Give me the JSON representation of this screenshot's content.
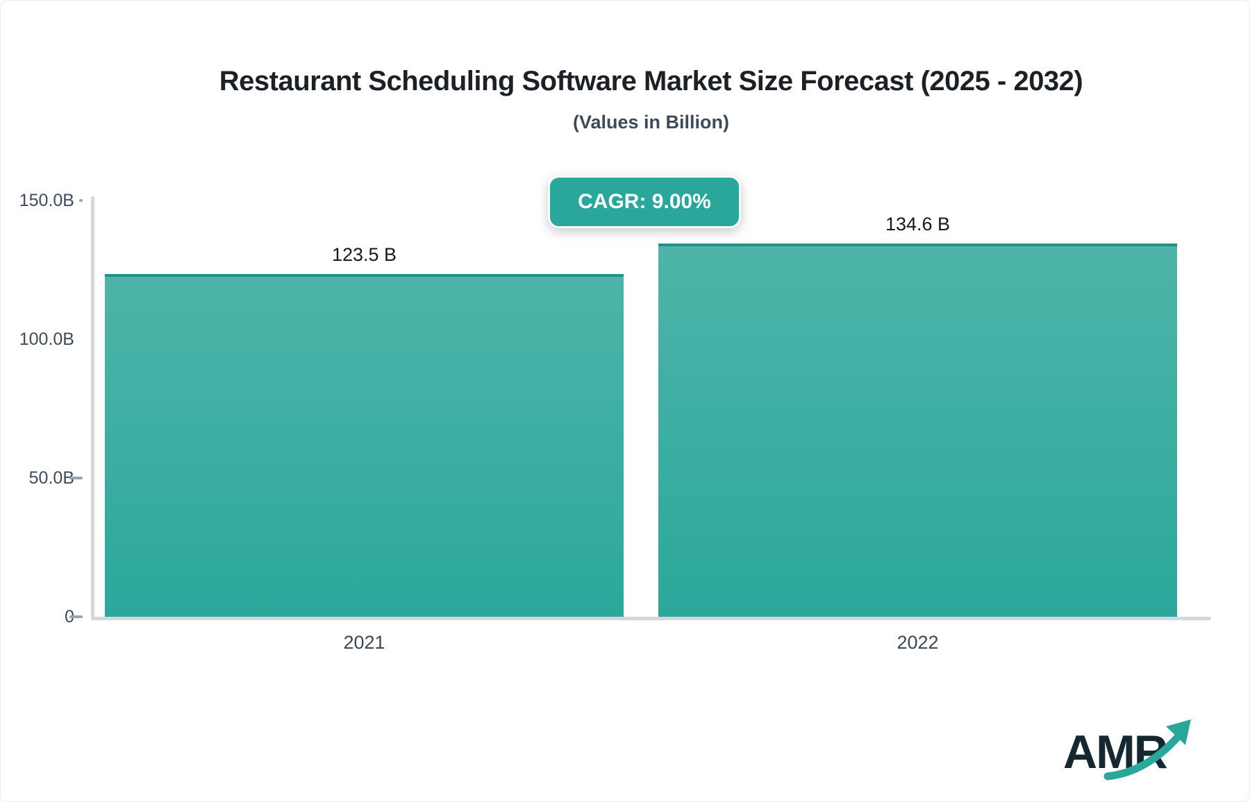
{
  "chart": {
    "title": "Restaurant Scheduling Software Market Size Forecast (2025 - 2032)",
    "subtitle": "(Values in Billion)",
    "cagr_label": "CAGR: 9.00%"
  },
  "chart_data": {
    "type": "bar",
    "categories": [
      "2021",
      "2022"
    ],
    "values": [
      123.5,
      134.6
    ],
    "value_labels": [
      "123.5 B",
      "134.6 B"
    ],
    "title": "Restaurant Scheduling Software Market Size Forecast (2025 - 2032)",
    "subtitle": "(Values in Billion)",
    "annotation": "CAGR: 9.00%",
    "xlabel": "",
    "ylabel": "",
    "ylim": [
      0,
      150
    ],
    "yticks": [
      {
        "value": 0,
        "label": "0"
      },
      {
        "value": 50,
        "label": "50.0B"
      },
      {
        "value": 100,
        "label": "100.0B"
      },
      {
        "value": 150,
        "label": "150.0B"
      }
    ],
    "grid": false,
    "legend": "none"
  },
  "colors": {
    "bar_top": "#4eb4a9",
    "bar_bottom": "#2ba89b",
    "bar_border": "#1f928a",
    "badge_bg": "#2aa79b",
    "badge_text": "#ffffff",
    "axis_line": "#d4d8dd",
    "tick_mark": "#9aa2ac",
    "axis_label": "#3e4b5b",
    "title_text": "#1b2126",
    "logo_dark": "#152730",
    "logo_teal": "#2aa79b"
  },
  "logo": {
    "text": "AMR"
  }
}
